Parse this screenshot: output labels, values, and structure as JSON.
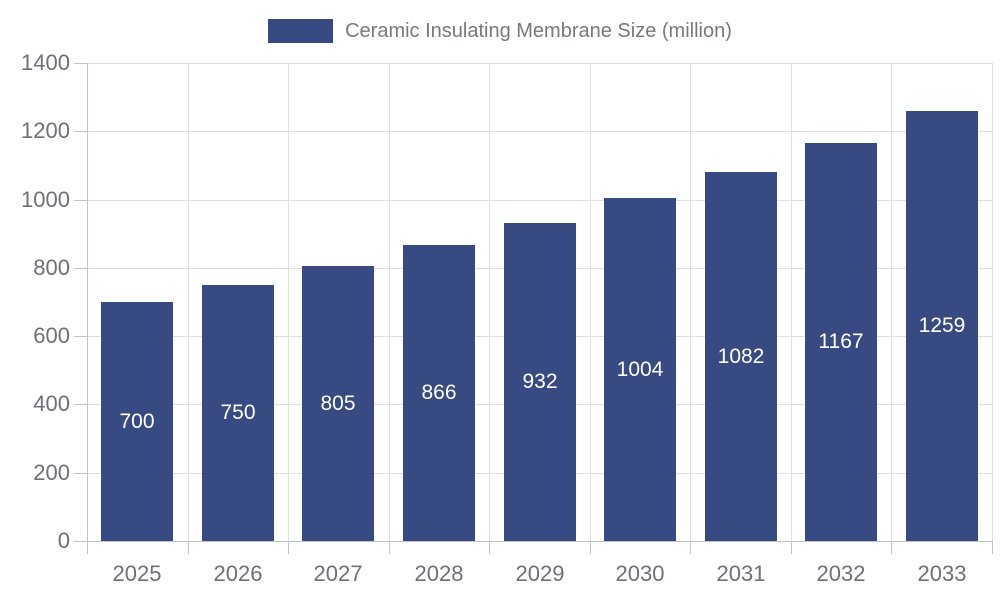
{
  "legend": {
    "label": "Ceramic Insulating Membrane Size (million)"
  },
  "chart_data": {
    "type": "bar",
    "title": "",
    "xlabel": "",
    "ylabel": "",
    "series_name": "Ceramic Insulating Membrane Size (million)",
    "categories": [
      "2025",
      "2026",
      "2027",
      "2028",
      "2029",
      "2030",
      "2031",
      "2032",
      "2033"
    ],
    "values": [
      700,
      750,
      805,
      866,
      932,
      1004,
      1082,
      1167,
      1259
    ],
    "ylim": [
      0,
      1400
    ],
    "yticks": [
      0,
      200,
      400,
      600,
      800,
      1000,
      1200,
      1400
    ],
    "grid": true,
    "legend_position": "top-center",
    "value_label_position": "inside-center",
    "colors": {
      "bar": "#384a82",
      "value_label": "#ffffff",
      "gridline": "#e0e0e0",
      "axis": "#bfc3cc",
      "tick_label": "#6e7079",
      "legend_text": "#76797d",
      "background": "#ffffff"
    }
  }
}
